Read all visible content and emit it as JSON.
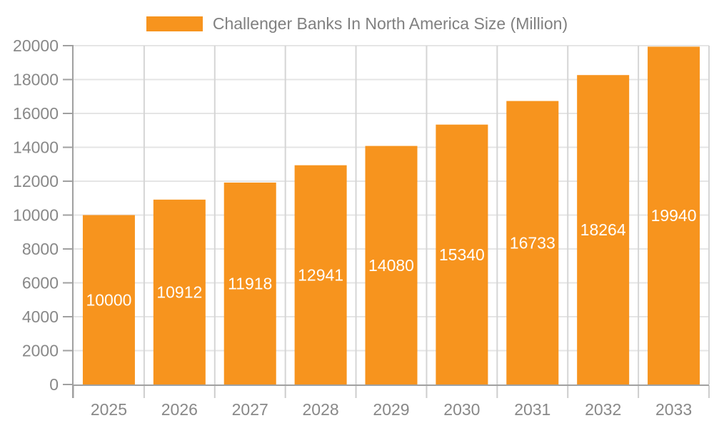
{
  "chart_data": {
    "type": "bar",
    "title": "Challenger Banks In North America Size (Million)",
    "categories": [
      "2025",
      "2026",
      "2027",
      "2028",
      "2029",
      "2030",
      "2031",
      "2032",
      "2033"
    ],
    "values": [
      10000,
      10912,
      11918,
      12941,
      14080,
      15340,
      16733,
      18264,
      19940
    ],
    "xlabel": "",
    "ylabel": "",
    "ylim": [
      0,
      20000
    ],
    "ytick_step": 2000,
    "ytick_labels": [
      "0",
      "2000",
      "4000",
      "6000",
      "8000",
      "10000",
      "12000",
      "14000",
      "16000",
      "18000",
      "20000"
    ],
    "grid": true,
    "legend_position": "top-center",
    "value_label_position": "inside-middle",
    "colors": {
      "bar": "#F7941E",
      "value_label": "#FFFFFF",
      "axis_text": "#888888",
      "title_text": "#808080",
      "grid_horizontal": "#E5E5E5",
      "grid_vertical": "#D5D5D5",
      "axis_line": "#A0A0A0",
      "x_tick": "#CDCDCD",
      "background": "#FFFFFF"
    }
  }
}
